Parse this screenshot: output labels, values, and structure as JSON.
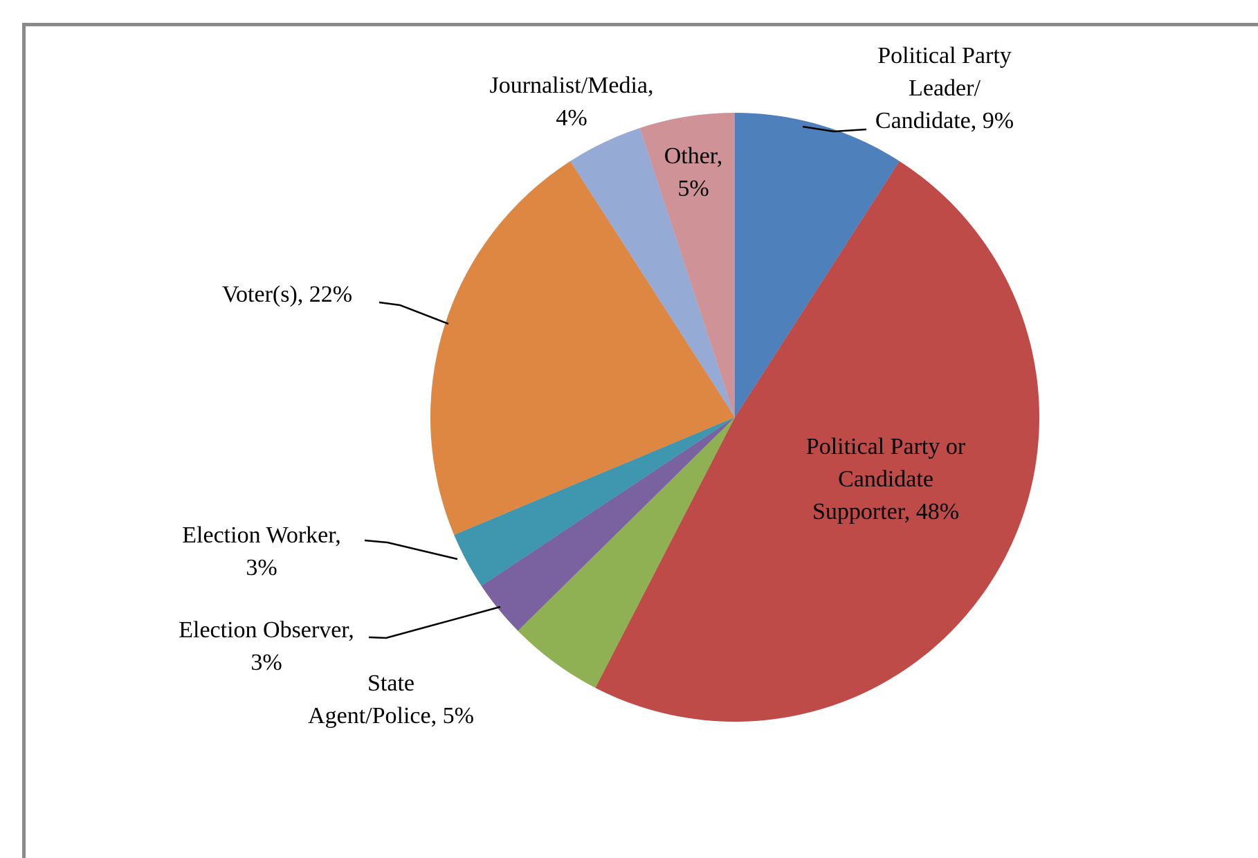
{
  "chart_data": {
    "type": "pie",
    "title": "",
    "unit": "%",
    "total_shown": 99,
    "direction": "clockwise",
    "start_angle_deg": 0,
    "legend": "none (data labels with leader lines)",
    "slices": [
      {
        "name": "political-party-leader-candidate",
        "label": "Political Party Leader/ Candidate",
        "value": 9,
        "color": "#4e80bc"
      },
      {
        "name": "political-party-or-candidate-supporter",
        "label": "Political Party or Candidate Supporter",
        "value": 48,
        "color": "#be4b48"
      },
      {
        "name": "state-agent-police",
        "label": "State Agent/Police",
        "value": 5,
        "color": "#90b054"
      },
      {
        "name": "election-observer",
        "label": "Election Observer",
        "value": 3,
        "color": "#7a61a0"
      },
      {
        "name": "election-worker",
        "label": "Election Worker",
        "value": 3,
        "color": "#3f96af"
      },
      {
        "name": "voters",
        "label": "Voter(s)",
        "value": 22,
        "color": "#dd8742"
      },
      {
        "name": "journalist-media",
        "label": "Journalist/Media",
        "value": 4,
        "color": "#95abd5"
      },
      {
        "name": "other",
        "label": "Other",
        "value": 5,
        "color": "#cf9296"
      }
    ]
  },
  "labels": {
    "leader_candidate": {
      "lines": [
        "Political Party",
        "Leader/",
        "Candidate, 9%"
      ]
    },
    "journalist": {
      "lines": [
        "Journalist/Media,",
        "4%"
      ]
    },
    "other": {
      "lines": [
        "Other,",
        "5%"
      ]
    },
    "voters": {
      "lines": [
        "Voter(s), 22%"
      ]
    },
    "supporter": {
      "lines": [
        "Political Party or",
        "Candidate",
        "Supporter, 48%"
      ]
    },
    "worker": {
      "lines": [
        "Election Worker,",
        "3%"
      ]
    },
    "observer": {
      "lines": [
        "Election Observer,",
        "3%"
      ]
    },
    "state_agent": {
      "lines": [
        "State",
        "Agent/Police, 5%"
      ]
    }
  },
  "frame": {
    "border_color": "#8a8a8a"
  }
}
